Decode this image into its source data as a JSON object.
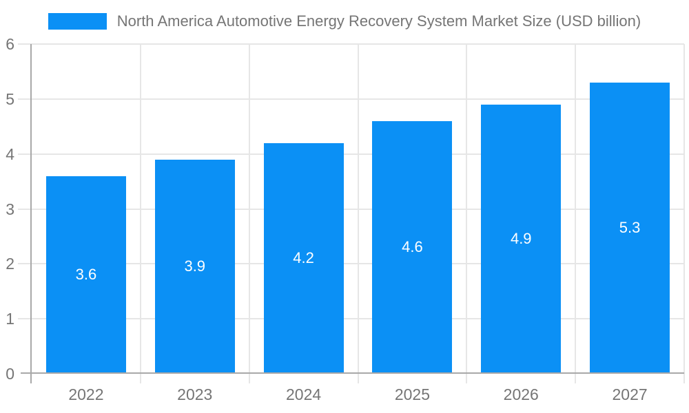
{
  "chart_data": {
    "type": "bar",
    "title": "North America Automotive Energy Recovery System Market Size (USD billion)",
    "categories": [
      "2022",
      "2023",
      "2024",
      "2025",
      "2026",
      "2027"
    ],
    "values": [
      3.6,
      3.9,
      4.2,
      4.6,
      4.9,
      5.3
    ],
    "value_labels": [
      "3.6",
      "3.9",
      "4.2",
      "4.6",
      "4.9",
      "5.3"
    ],
    "xlabel": "",
    "ylabel": "",
    "ylim": [
      0,
      6
    ],
    "yticks": [
      0,
      1,
      2,
      3,
      4,
      5,
      6
    ],
    "grid": "on",
    "legend_position": "top",
    "colors": {
      "bar": "#0b90f5",
      "bar_label": "#ffffff",
      "text_gray": "#757575",
      "gridline": "#e6e6e6",
      "axis": "#a8a8a8",
      "background": "#ffffff"
    }
  }
}
